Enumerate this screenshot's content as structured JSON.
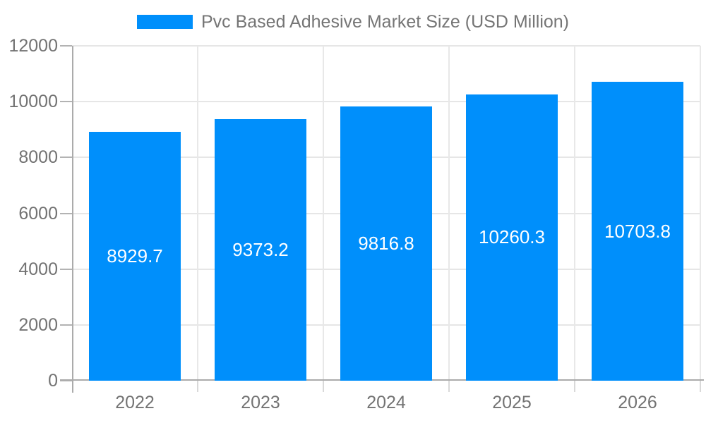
{
  "legend": {
    "label": "Pvc Based Adhesive Market Size (USD Million)",
    "swatch_color": "#008FFB"
  },
  "chart_data": {
    "type": "bar",
    "title": "Pvc Based Adhesive Market Size (USD Million)",
    "categories": [
      "2022",
      "2023",
      "2024",
      "2025",
      "2026"
    ],
    "series": [
      {
        "name": "Pvc Based Adhesive Market Size (USD Million)",
        "color": "#008FFB",
        "values": [
          8929.7,
          9373.2,
          9816.8,
          10260.3,
          10703.8
        ]
      }
    ],
    "value_labels": [
      "8929.7",
      "9373.2",
      "9816.8",
      "10260.3",
      "10703.8"
    ],
    "xlabel": "",
    "ylabel": "",
    "ylim": [
      0,
      12000
    ],
    "yticks": [
      0,
      2000,
      4000,
      6000,
      8000,
      10000,
      12000
    ],
    "grid": true,
    "legend_position": "top",
    "colors": {
      "bar": "#008FFB",
      "value_label_text": "#ffffff",
      "axis_label_text": "#737373",
      "legend_text": "#757575",
      "hgridline": "#e6e6e6",
      "vgridline": "#e8e8e8",
      "axis_line": "#ababab",
      "x_tick": "#d9d9d9",
      "background": "#ffffff"
    }
  }
}
